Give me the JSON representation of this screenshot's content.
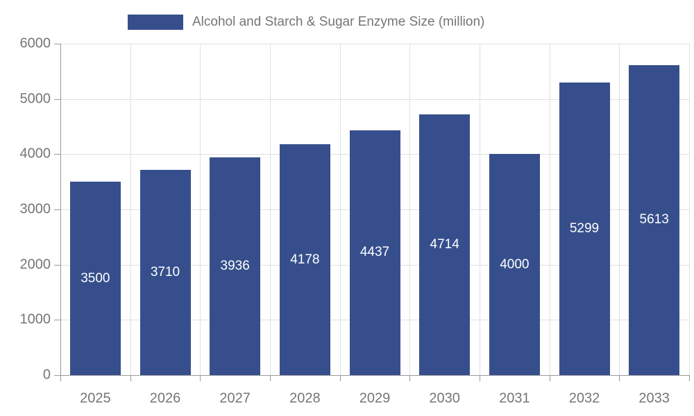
{
  "chart_data": {
    "type": "bar",
    "title": "Alcohol and Starch & Sugar Enzyme Size (million)",
    "categories": [
      "2025",
      "2026",
      "2027",
      "2028",
      "2029",
      "2030",
      "2031",
      "2032",
      "2033"
    ],
    "values": [
      3500,
      3710,
      3936,
      4178,
      4437,
      4714,
      4000,
      5299,
      5613
    ],
    "value_labels": [
      "3500",
      "3710",
      "3936",
      "4178",
      "4437",
      "4714",
      "4000",
      "5299",
      "5613"
    ],
    "xlabel": "",
    "ylabel": "",
    "ylim": [
      0,
      6000
    ],
    "yticks": [
      0,
      1000,
      2000,
      3000,
      4000,
      5000,
      6000
    ],
    "ytick_labels": [
      "0",
      "1000",
      "2000",
      "3000",
      "4000",
      "5000",
      "6000"
    ],
    "grid": "on",
    "legend_position": "top",
    "colors": {
      "bar": "#364F8C",
      "grid_line": "#e0e0e0",
      "axis_line": "#999999",
      "tick_text": "#757575",
      "legend_text": "#757575",
      "value_label_text": "#ffffff",
      "background": "#ffffff"
    }
  }
}
